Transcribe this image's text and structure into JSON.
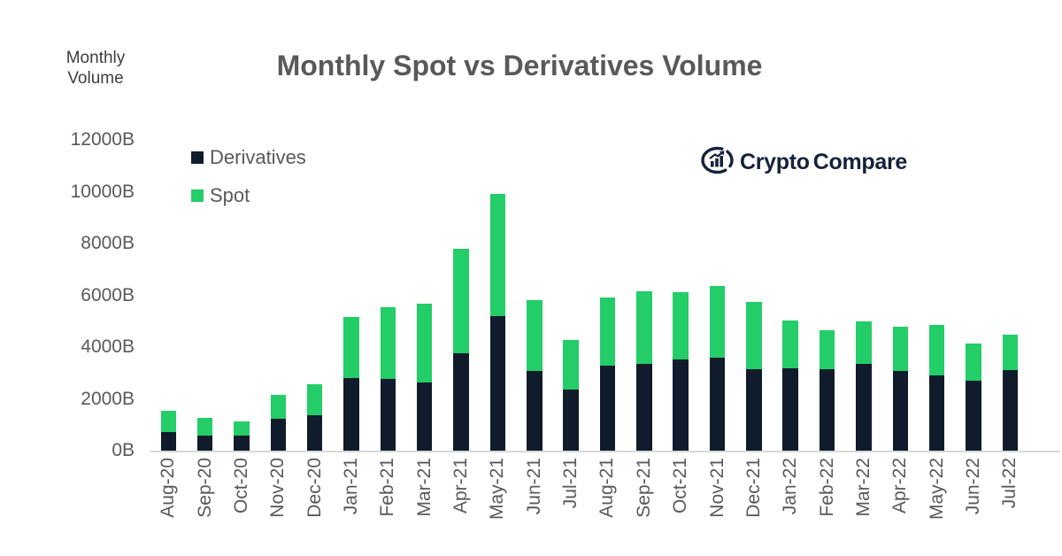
{
  "header": {
    "title": "Monthly Spot vs Derivatives Volume",
    "y_axis_unit": "Monthly\nVolume"
  },
  "legend": [
    {
      "label": "Derivatives",
      "color": "#101C2B"
    },
    {
      "label": "Spot",
      "color": "#23CD67"
    }
  ],
  "logo": {
    "icon": "cryptocompare-chart-icon",
    "brand_part1": "Crypto",
    "brand_part2": "Compare",
    "color": "#16223A"
  },
  "chart_data": {
    "type": "bar",
    "stacked": true,
    "title": "Monthly Spot vs Derivatives Volume",
    "xlabel": "",
    "ylabel": "Monthly Volume",
    "unit": "B",
    "ylim": [
      0,
      12000
    ],
    "y_tick_step": 2000,
    "y_ticks": [
      "0B",
      "2000B",
      "4000B",
      "6000B",
      "8000B",
      "10000B",
      "12000B"
    ],
    "grid": false,
    "legend_position": "top-left",
    "categories": [
      "Aug-20",
      "Sep-20",
      "Oct-20",
      "Nov-20",
      "Dec-20",
      "Jan-21",
      "Feb-21",
      "Mar-21",
      "Apr-21",
      "May-21",
      "Jun-21",
      "Jul-21",
      "Aug-21",
      "Sep-21",
      "Oct-21",
      "Nov-21",
      "Dec-21",
      "Jan-22",
      "Feb-22",
      "Mar-22",
      "Apr-22",
      "May-22",
      "Jun-22",
      "Jul-22"
    ],
    "series": [
      {
        "name": "Derivatives",
        "color": "#101C2B",
        "values": [
          720,
          570,
          580,
          1230,
          1360,
          2810,
          2780,
          2640,
          3750,
          5190,
          3070,
          2360,
          3270,
          3350,
          3520,
          3580,
          3160,
          3180,
          3130,
          3350,
          3070,
          2900,
          2700,
          3100
        ]
      },
      {
        "name": "Spot",
        "color": "#23CD67",
        "values": [
          830,
          700,
          550,
          920,
          1220,
          2360,
          2770,
          3040,
          4050,
          4720,
          2730,
          1900,
          2640,
          2820,
          2600,
          2770,
          2590,
          1850,
          1510,
          1650,
          1710,
          1970,
          1430,
          1380
        ]
      }
    ]
  }
}
